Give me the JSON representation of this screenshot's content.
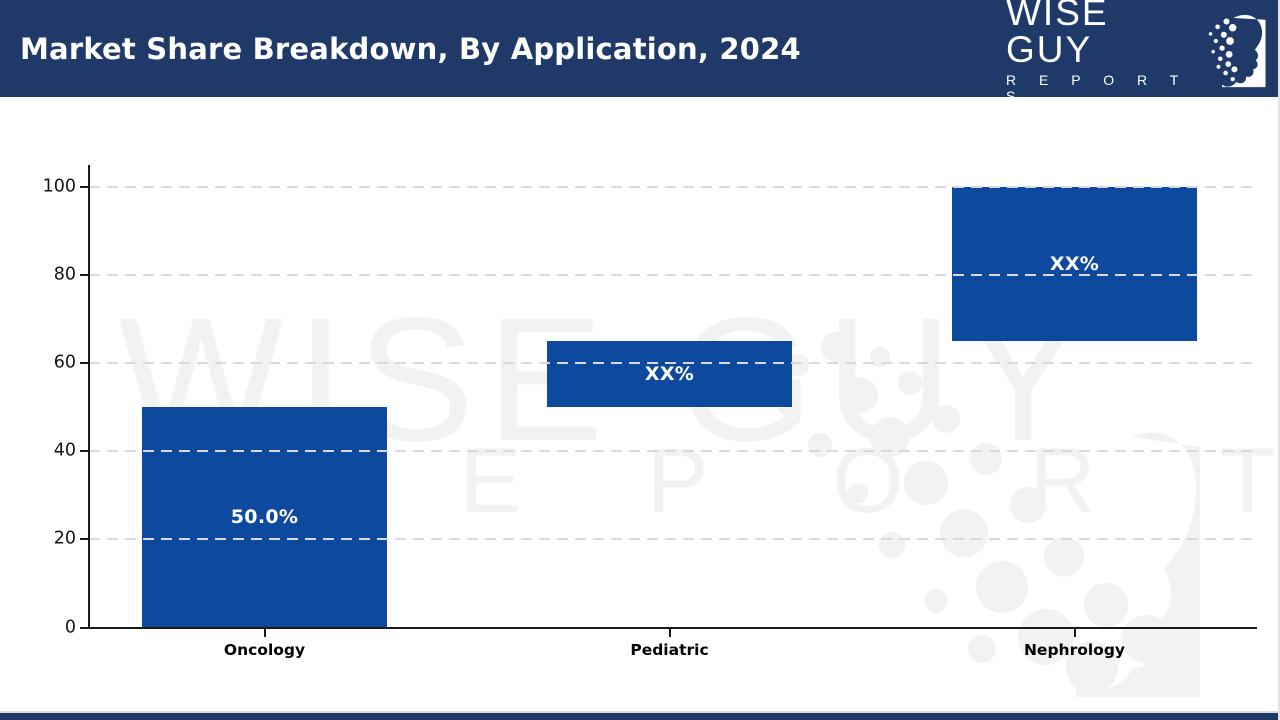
{
  "header": {
    "title": "Market Share Breakdown, By Application, 2024",
    "logo": {
      "line1": "WISE GUY",
      "line2": "REPORTS"
    }
  },
  "watermark": {
    "line1": "WISE GUY",
    "line2": "REPORTS"
  },
  "chart_data": {
    "type": "bar",
    "variant": "waterfall",
    "title": "Market Share Breakdown, By Application, 2024",
    "xlabel": "",
    "ylabel": "",
    "categories": [
      "Oncology",
      "Pediatric",
      "Nephrology"
    ],
    "segments": [
      {
        "category": "Oncology",
        "start": 0,
        "end": 50,
        "label": "50.0%"
      },
      {
        "category": "Pediatric",
        "start": 50,
        "end": 65,
        "label": "XX%"
      },
      {
        "category": "Nephrology",
        "start": 65,
        "end": 100,
        "label": "XX%"
      }
    ],
    "yticks": [
      0,
      20,
      40,
      60,
      80,
      100
    ],
    "ylim": [
      0,
      104.8
    ],
    "grid": "horizontal dashed, drawn over bars",
    "legend": "none"
  },
  "colors": {
    "header_bg": "#1f3a68",
    "footer_bg": "#1f3a68",
    "bar": "#0d4a9e",
    "bar_label": "#ffffff",
    "grid": "#d9d9d9",
    "axis": "#1a1a1a",
    "watermark": "#f2f2f3",
    "title_text": "#ffffff"
  }
}
